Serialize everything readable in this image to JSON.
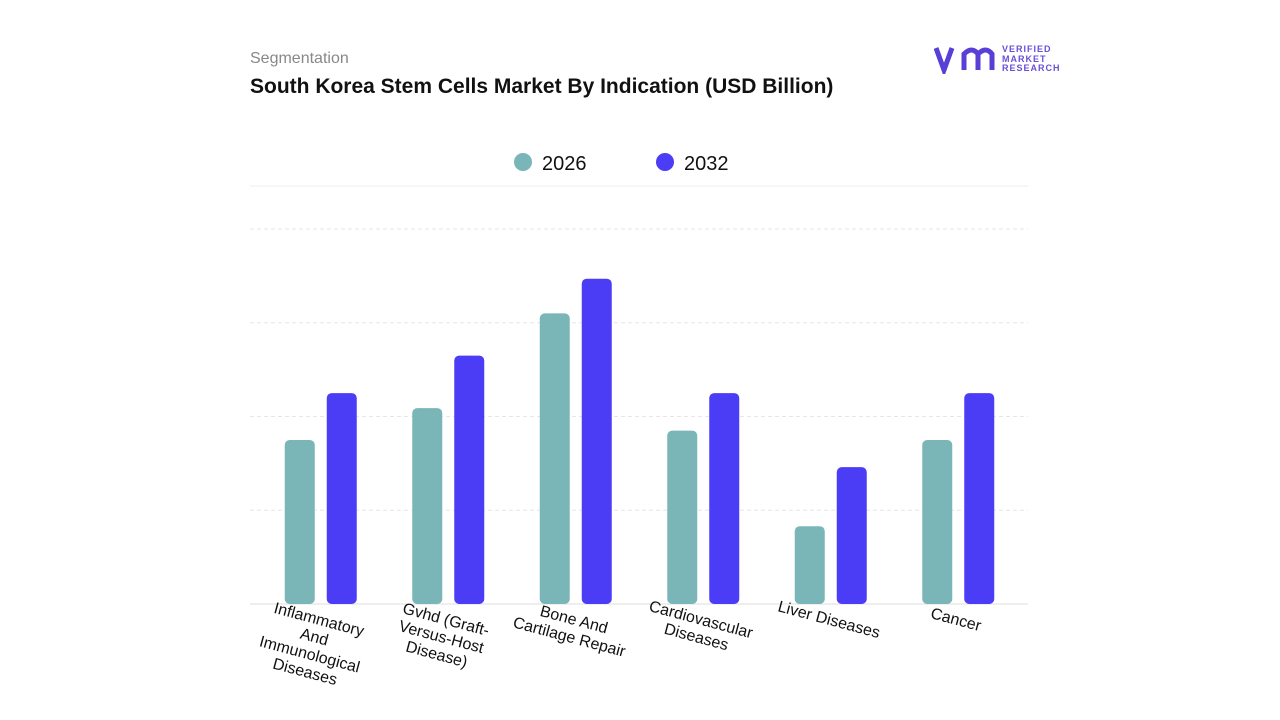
{
  "chart_data": {
    "type": "bar",
    "subtitle": "Segmentation",
    "title": "South Korea Stem Cells Market By Indication (USD Billion)",
    "logo": [
      "VERIFIED",
      "MARKET",
      "RESEARCH"
    ],
    "categories": [
      "Inflammatory And Immunological Diseases",
      "Gvhd  (Graft-Versus-Host Disease)",
      "Bone And Cartilage Repair",
      "Cardiovascular Diseases",
      "Liver Diseases",
      "Cancer"
    ],
    "series": [
      {
        "name": "2026",
        "color": "#7ab5b7",
        "values": [
          1.75,
          2.09,
          3.1,
          1.85,
          0.83,
          1.75
        ]
      },
      {
        "name": "2032",
        "color": "#4b3cf5",
        "values": [
          2.25,
          2.65,
          3.47,
          2.25,
          1.46,
          2.25
        ]
      }
    ],
    "ylim": [
      0,
      4
    ],
    "grid_lines": [
      1,
      2,
      3,
      4
    ],
    "legend": "top"
  }
}
